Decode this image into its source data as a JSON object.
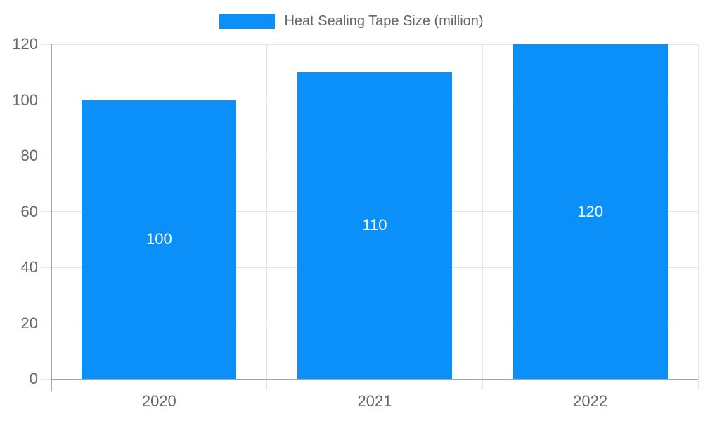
{
  "chart_data": {
    "type": "bar",
    "title": "Heat Sealing Tape Size (million)",
    "categories": [
      "2020",
      "2021",
      "2022"
    ],
    "series": [
      {
        "name": "Heat Sealing Tape Size (million)",
        "values": [
          100,
          110,
          120
        ]
      }
    ],
    "data_labels": [
      "100",
      "110",
      "120"
    ],
    "xlabel": "",
    "ylabel": "",
    "ylim": [
      0,
      120
    ],
    "yticks": [
      0,
      20,
      40,
      60,
      80,
      100,
      120
    ],
    "grid": true,
    "legend": {
      "position": "top",
      "entries": [
        "Heat Sealing Tape Size (million)"
      ]
    },
    "colors": {
      "bar": "#0a90f8",
      "grid_line": "#e6e6e6",
      "axis_line": "#a6a6a6",
      "tick_text": "#666666",
      "data_label_text": "#ffffff",
      "background": "#ffffff"
    }
  }
}
